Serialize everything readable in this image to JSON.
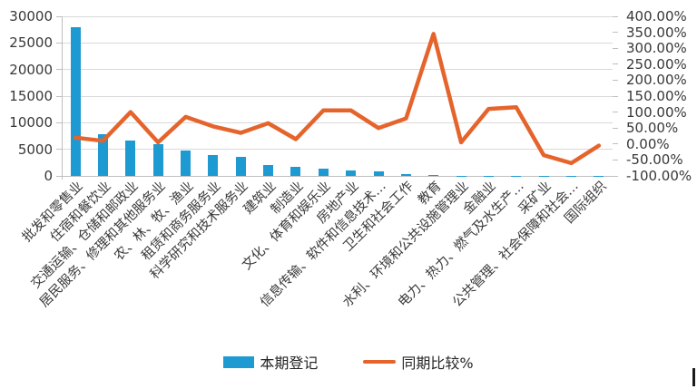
{
  "chart_data": {
    "type": "bar",
    "subtype": "combo-bar-line",
    "title": "",
    "categories": [
      "批发和零售业",
      "住宿和餐饮业",
      "交通运输、仓储和邮政业",
      "居民服务、修理和其他服务业",
      "农、林、牧、渔业",
      "租赁和商务服务业",
      "科学研究和技术服务业",
      "建筑业",
      "制造业",
      "文化、体育和娱乐业",
      "房地产业",
      "信息传输、软件和信息技术…",
      "卫生和社会工作",
      "教育",
      "水利、环境和公共设施管理业",
      "金融业",
      "电力、热力、燃气及水生产…",
      "采矿业",
      "公共管理、社会保障和社会…",
      "国际组织"
    ],
    "series": [
      {
        "name": "本期登记",
        "type": "bar",
        "axis": "left",
        "color": "#1e9ad2",
        "values": [
          28000,
          7800,
          6600,
          6000,
          4800,
          4000,
          3600,
          2000,
          1700,
          1400,
          1000,
          800,
          350,
          250,
          80,
          60,
          40,
          30,
          50,
          20
        ]
      },
      {
        "name": "同期比较%",
        "type": "line",
        "axis": "right",
        "color": "#e5642c",
        "values": [
          20,
          10,
          100,
          5,
          85,
          55,
          35,
          65,
          15,
          105,
          105,
          50,
          80,
          345,
          5,
          110,
          115,
          -35,
          -60,
          -5
        ]
      }
    ],
    "left_axis": {
      "min": 0,
      "max": 30000,
      "step": 5000,
      "tick_values": [
        0,
        5000,
        10000,
        15000,
        20000,
        25000,
        30000
      ]
    },
    "right_axis": {
      "min": -100,
      "max": 400,
      "step": 50,
      "tick_values": [
        400,
        350,
        300,
        250,
        200,
        150,
        100,
        50,
        0,
        -50,
        -100
      ],
      "format": "percent2"
    },
    "legend": {
      "position": "bottom"
    },
    "grid": true
  }
}
